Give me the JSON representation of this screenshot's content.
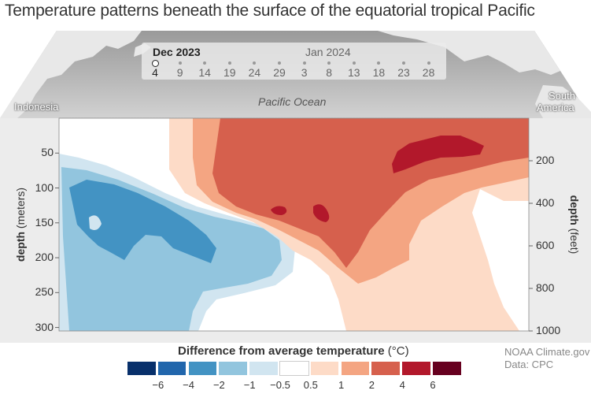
{
  "title": "Temperature patterns beneath the surface of the equatorial tropical Pacific",
  "map": {
    "left_place": "Indonesia",
    "right_place_line1": "South",
    "right_place_line2": "America",
    "ocean_label": "Pacific Ocean"
  },
  "timeline": {
    "month1": "Dec 2023",
    "month2": "Jan 2024",
    "days": [
      "4",
      "9",
      "14",
      "19",
      "24",
      "29",
      "3",
      "8",
      "13",
      "18",
      "23",
      "28"
    ],
    "selected_index": 0
  },
  "chart_data": {
    "type": "heatmap",
    "subtype": "filled contour (depth-longitude cross-section)",
    "x_axis": {
      "label": "",
      "left_end": "Indonesia",
      "right_end": "South America"
    },
    "y_axis_left": {
      "label_bold": "depth",
      "label_unit": "(meters)",
      "ticks": [
        50,
        100,
        150,
        200,
        250,
        300
      ],
      "range": [
        0,
        305
      ],
      "inverted": true
    },
    "y_axis_right": {
      "label_bold": "depth",
      "label_unit": "(feet)",
      "ticks": [
        200,
        400,
        600,
        800,
        1000
      ],
      "range": [
        0,
        1000
      ],
      "inverted": true
    },
    "legend": {
      "title": "Difference from average temperature",
      "unit": "(°C)",
      "labels": [
        "−6",
        "−4",
        "−2",
        "−1",
        "−0.5",
        "0.5",
        "1",
        "2",
        "4",
        "6"
      ],
      "colors": [
        "#08306b",
        "#2166ac",
        "#4393c3",
        "#92c5de",
        "#d1e5f0",
        "#ffffff",
        "#fddbc7",
        "#f4a582",
        "#d6604d",
        "#b2182b",
        "#67001f"
      ]
    },
    "regions": [
      {
        "level": "−0.5",
        "color": "#d1e5f0",
        "description": "cool anomaly in western Pacific below 50 m"
      },
      {
        "level": "−1",
        "color": "#92c5de",
        "description": "cool anomaly core, 100–280 m in the west"
      },
      {
        "level": "−2",
        "color": "#4393c3",
        "description": "strongest cool anomaly, ~100–210 m in the west"
      },
      {
        "level": "0.5",
        "color": "#fddbc7",
        "description": "warm anomaly spanning central and eastern Pacific"
      },
      {
        "level": "1",
        "color": "#f4a582",
        "description": "warm anomaly extending to ~250 m in the east"
      },
      {
        "level": "2",
        "color": "#d6604d",
        "description": "warm anomaly core near the surface in the central-east"
      },
      {
        "level": "4",
        "color": "#b2182b",
        "description": "peak warm anomaly ~50–80 m in the east"
      }
    ]
  },
  "credit": {
    "line1": "NOAA Climate.gov",
    "line2": "Data: CPC"
  }
}
